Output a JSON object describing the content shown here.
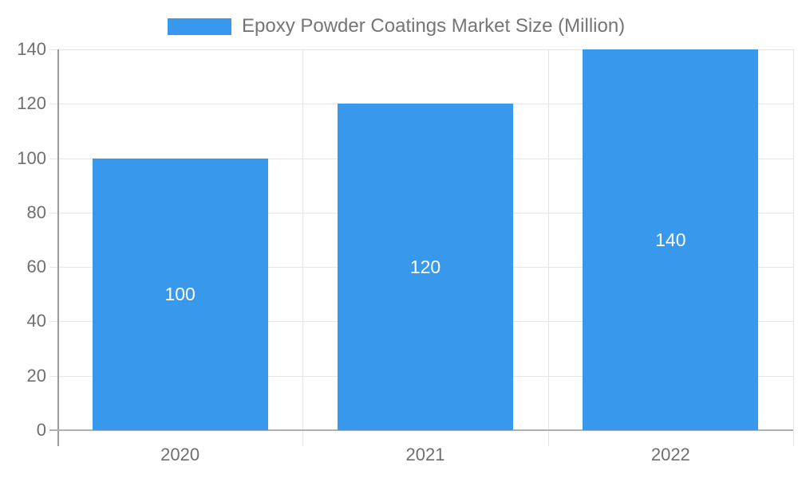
{
  "legend": {
    "label": "Epoxy Powder Coatings Market Size (Million)"
  },
  "chart_data": {
    "type": "bar",
    "title": "Epoxy Powder Coatings Market Size (Million)",
    "categories": [
      "2020",
      "2021",
      "2022"
    ],
    "series": [
      {
        "name": "Epoxy Powder Coatings Market Size (Million)",
        "values": [
          100,
          120,
          140
        ]
      }
    ],
    "values": [
      100,
      120,
      140
    ],
    "data_labels": [
      "100",
      "120",
      "140"
    ],
    "xlabel": "",
    "ylabel": "",
    "ylim": [
      0,
      140
    ],
    "yticks": [
      0,
      20,
      40,
      60,
      80,
      100,
      120,
      140
    ],
    "grid": true,
    "legend_position": "top"
  },
  "colors": {
    "bar": "#3899ec",
    "data_label": "#ffffff",
    "axis_label": "#6f6f6f",
    "legend_label": "#757575",
    "gridline": "#e6e6e6",
    "x_axis_line": "#b0b0b0",
    "y_axis_line": "#9a9a9a",
    "background": "#ffffff"
  }
}
